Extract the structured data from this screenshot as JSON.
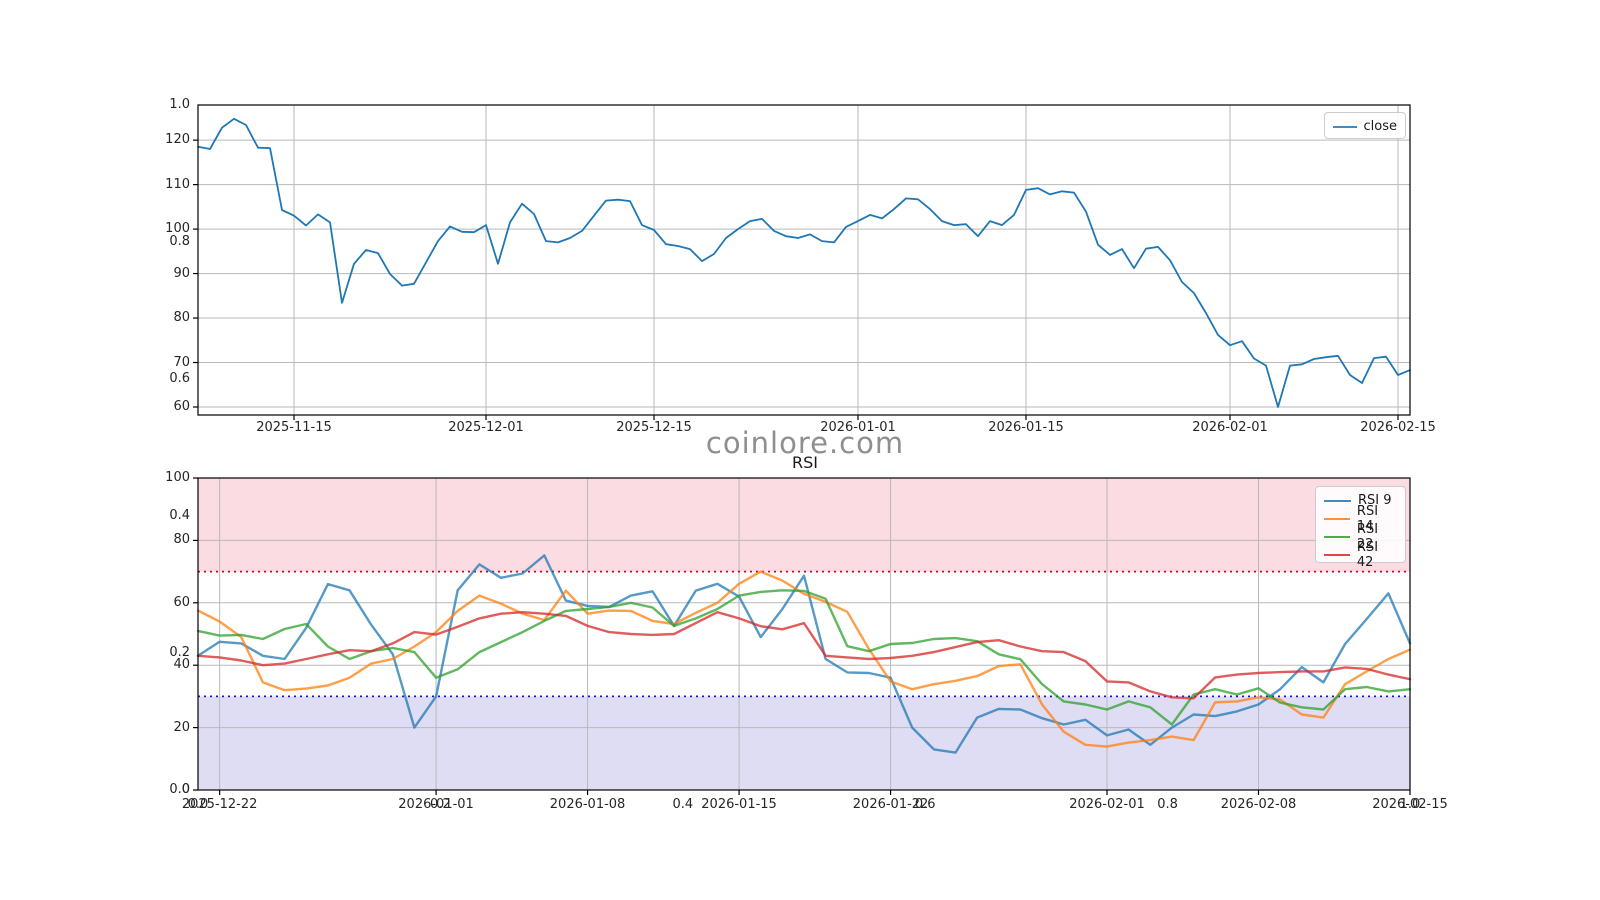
{
  "watermark": {
    "text": "coinlore.com"
  },
  "overlay_axis": {
    "y_labels": [
      "1.0",
      "0.8",
      "0.6",
      "0.4",
      "0.2",
      "0.0"
    ],
    "x_labels": [
      "0.0",
      "0.2",
      "0.4",
      "0.6",
      "0.8",
      "1.0"
    ]
  },
  "chart_data": [
    {
      "type": "line",
      "title": "",
      "x_start": "2025-11-07",
      "x_end": "2026-02-16",
      "x_tick_labels": [
        "2025-11-15",
        "2025-12-01",
        "2025-12-15",
        "2026-01-01",
        "2026-01-15",
        "2026-02-01",
        "2026-02-15"
      ],
      "y_ticks": [
        60,
        70,
        80,
        90,
        100,
        110,
        120
      ],
      "ylim": [
        58.2,
        127.9
      ],
      "grid": true,
      "legend_position": "upper right",
      "series": [
        {
          "name": "close",
          "color": "#1f77b4",
          "values": [
            118.5,
            118.0,
            122.8,
            124.8,
            123.4,
            118.3,
            118.2,
            104.3,
            103.0,
            100.8,
            103.3,
            101.5,
            83.4,
            92.2,
            95.3,
            94.6,
            89.9,
            87.3,
            87.7,
            92.5,
            97.3,
            100.6,
            99.4,
            99.3,
            100.9,
            92.2,
            101.5,
            105.7,
            103.4,
            97.3,
            97.0,
            98.0,
            99.6,
            103.0,
            106.4,
            106.6,
            106.3,
            100.9,
            99.8,
            96.6,
            96.2,
            95.5,
            92.8,
            94.4,
            98.0,
            100.0,
            101.8,
            102.3,
            99.6,
            98.4,
            98.0,
            98.8,
            97.3,
            97.0,
            100.5,
            101.8,
            103.2,
            102.4,
            104.5,
            106.9,
            106.7,
            104.5,
            101.8,
            100.9,
            101.1,
            98.4,
            101.8,
            100.9,
            103.2,
            108.8,
            109.2,
            107.8,
            108.5,
            108.2,
            103.9,
            96.5,
            94.2,
            95.5,
            91.2,
            95.6,
            96.0,
            93.0,
            88.1,
            85.6,
            81.1,
            76.2,
            73.9,
            74.8,
            70.9,
            69.3,
            60.0,
            69.3,
            69.6,
            70.8,
            71.2,
            71.5,
            67.2,
            65.4,
            71.0,
            71.3,
            67.2,
            68.3
          ]
        }
      ]
    },
    {
      "type": "line",
      "title": "RSI",
      "x_start": "2025-12-21",
      "x_end": "2026-02-15",
      "x_tick_labels": [
        "2025-12-22",
        "2026-01-01",
        "2026-01-08",
        "2026-01-15",
        "2026-01-22",
        "2026-02-01",
        "2026-02-08",
        "2026-02-15"
      ],
      "y_ticks": [
        0,
        20,
        40,
        60,
        80,
        100
      ],
      "ylim": [
        0,
        100
      ],
      "grid": true,
      "legend_position": "upper right",
      "bands": [
        {
          "from": 70,
          "to": 100,
          "color": "#fadce2",
          "meaning": "overbought"
        },
        {
          "from": 0,
          "to": 30,
          "color": "#dfddf3",
          "meaning": "oversold"
        }
      ],
      "hlines": [
        {
          "y": 70,
          "color": "#d40022",
          "style": "dotted"
        },
        {
          "y": 30,
          "color": "#1414cc",
          "style": "dotted"
        }
      ],
      "series": [
        {
          "name": "RSI 9",
          "color": "#1f77b4",
          "values": [
            43,
            47.5,
            47,
            43,
            42,
            52,
            66,
            64,
            53,
            43.5,
            20,
            30,
            64,
            72.3,
            68,
            69.4,
            75.2,
            60.7,
            59,
            58.7,
            62.3,
            63.7,
            52.6,
            63.9,
            66.1,
            62,
            49,
            58,
            68.7,
            42,
            37.7,
            37.5,
            36,
            20,
            13,
            12,
            23.2,
            26,
            25.8,
            23,
            21,
            22.5,
            17.5,
            19.4,
            14.5,
            20,
            24.2,
            23.7,
            25.2,
            27.4,
            32.3,
            39.4,
            34.5,
            46.8,
            54.8,
            63,
            47
          ]
        },
        {
          "name": "RSI 14",
          "color": "#ff7f0e",
          "values": [
            57.5,
            54,
            49,
            34.5,
            32,
            32.5,
            33.5,
            36,
            40.5,
            42,
            46,
            50.6,
            57.4,
            62.3,
            59.7,
            56.5,
            54.5,
            63.9,
            56.5,
            57.5,
            57.4,
            54.2,
            53.2,
            56.8,
            60,
            66.1,
            70,
            67.1,
            62.9,
            60.3,
            57.1,
            45.2,
            34.8,
            32.3,
            33.9,
            35,
            36.5,
            39.7,
            40.3,
            27.4,
            18.7,
            14.5,
            13.9,
            15.2,
            16,
            17.1,
            16,
            28.1,
            28.4,
            29.7,
            29,
            24.2,
            23.2,
            33.9,
            38,
            42,
            45
          ]
        },
        {
          "name": "RSI 22",
          "color": "#2ca02c",
          "values": [
            51,
            49.5,
            49.7,
            48.4,
            51.6,
            53.2,
            46,
            42,
            44.5,
            45.5,
            44.2,
            36,
            38.7,
            44.2,
            47.4,
            50.6,
            54.2,
            57.4,
            58,
            58.7,
            60,
            58.5,
            52.6,
            55,
            58,
            62.3,
            63.5,
            64,
            63.8,
            61.3,
            46.1,
            44.5,
            46.8,
            47.1,
            48.4,
            48.7,
            47.7,
            43.5,
            41.9,
            33.9,
            28.4,
            27.4,
            25.8,
            28.4,
            26.5,
            21,
            30.6,
            32.3,
            30.6,
            32.6,
            28,
            26.5,
            25.8,
            32.3,
            33,
            31.6,
            32.3
          ]
        },
        {
          "name": "RSI 42",
          "color": "#d62728",
          "values": [
            43,
            42.5,
            41.5,
            40,
            40.5,
            42,
            43.5,
            44.8,
            44.5,
            47,
            50.6,
            49.8,
            52.3,
            55,
            56.5,
            57,
            56.5,
            55.8,
            52.6,
            50.6,
            50,
            49.7,
            50,
            53.5,
            57,
            55,
            52.5,
            51.5,
            53.5,
            43,
            42.5,
            42,
            42.3,
            43,
            44.2,
            45.8,
            47.4,
            48,
            46,
            44.5,
            44.2,
            41.3,
            34.8,
            34.5,
            31.6,
            29.7,
            29.4,
            36.1,
            37,
            37.5,
            37.8,
            38,
            38,
            39.3,
            38.8,
            37,
            35.5
          ]
        }
      ]
    }
  ]
}
